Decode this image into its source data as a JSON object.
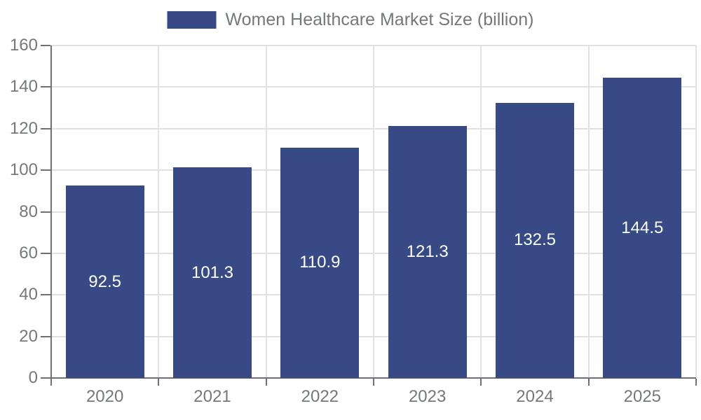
{
  "legend": {
    "label": "Women Healthcare Market Size (billion)"
  },
  "chart_data": {
    "type": "bar",
    "title": "Women Healthcare Market Size (billion)",
    "categories": [
      "2020",
      "2021",
      "2022",
      "2023",
      "2024",
      "2025"
    ],
    "values": [
      92.5,
      101.3,
      110.9,
      121.3,
      132.5,
      144.5
    ],
    "value_labels": [
      "92.5",
      "101.3",
      "110.9",
      "121.3",
      "132.5",
      "144.5"
    ],
    "series": [
      {
        "name": "Women Healthcare Market Size (billion)",
        "values": [
          92.5,
          101.3,
          110.9,
          121.3,
          132.5,
          144.5
        ]
      }
    ],
    "xlabel": "",
    "ylabel": "",
    "ylim": [
      0,
      160
    ],
    "yticks": [
      0,
      20,
      40,
      60,
      80,
      100,
      120,
      140,
      160
    ],
    "grid": true,
    "legend_position": "top-center",
    "value_label_position": "inside-center",
    "colors": {
      "bar": "#374A85",
      "axis": "#6E7079",
      "grid": "#E1E1E4",
      "tick_text": "#75787B",
      "value_label_text": "#FFFFFF",
      "background": "#FFFFFF"
    }
  }
}
